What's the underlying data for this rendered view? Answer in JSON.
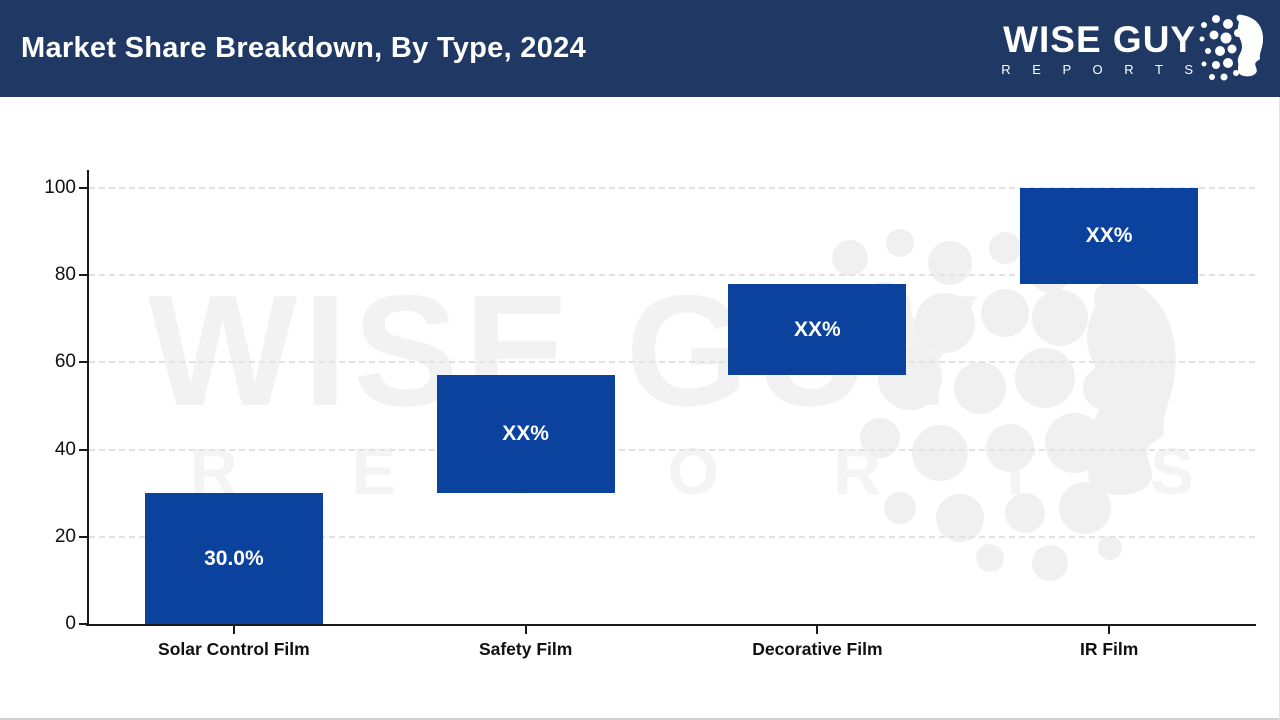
{
  "header": {
    "title": "Market Share Breakdown, By Type, 2024",
    "logo": {
      "name": "WISE GUY",
      "subname": "R E P O R T S"
    }
  },
  "watermark": {
    "line1": "WISE GUY",
    "line2": "R E P O R T S"
  },
  "chart_data": {
    "type": "bar",
    "subtype": "waterfall",
    "title": "Market Share Breakdown, By Type, 2024",
    "categories": [
      "Solar Control Film",
      "Safety Film",
      "Decorative Film",
      "IR Film"
    ],
    "series": [
      {
        "name": "Solar Control Film",
        "start": 0,
        "end": 30,
        "label": "30.0%"
      },
      {
        "name": "Safety Film",
        "start": 30,
        "end": 57,
        "label": "XX%"
      },
      {
        "name": "Decorative Film",
        "start": 57,
        "end": 78,
        "label": "XX%"
      },
      {
        "name": "IR Film",
        "start": 78,
        "end": 100,
        "label": "XX%"
      }
    ],
    "ylim": [
      0,
      100
    ],
    "yticks": [
      0,
      20,
      40,
      60,
      80,
      100
    ],
    "xlabel": "",
    "ylabel": "",
    "grid": "horizontal-dashed",
    "legend": "none",
    "bar_color": "#0b429d",
    "bar_label_color": "#ffffff"
  },
  "colors": {
    "header_bg": "#1f3864",
    "bar": "#0b429d",
    "axis": "#1a1a1a",
    "grid": "#e2e2e2",
    "tick_text": "#111111",
    "watermark": "#f2f2f2"
  }
}
